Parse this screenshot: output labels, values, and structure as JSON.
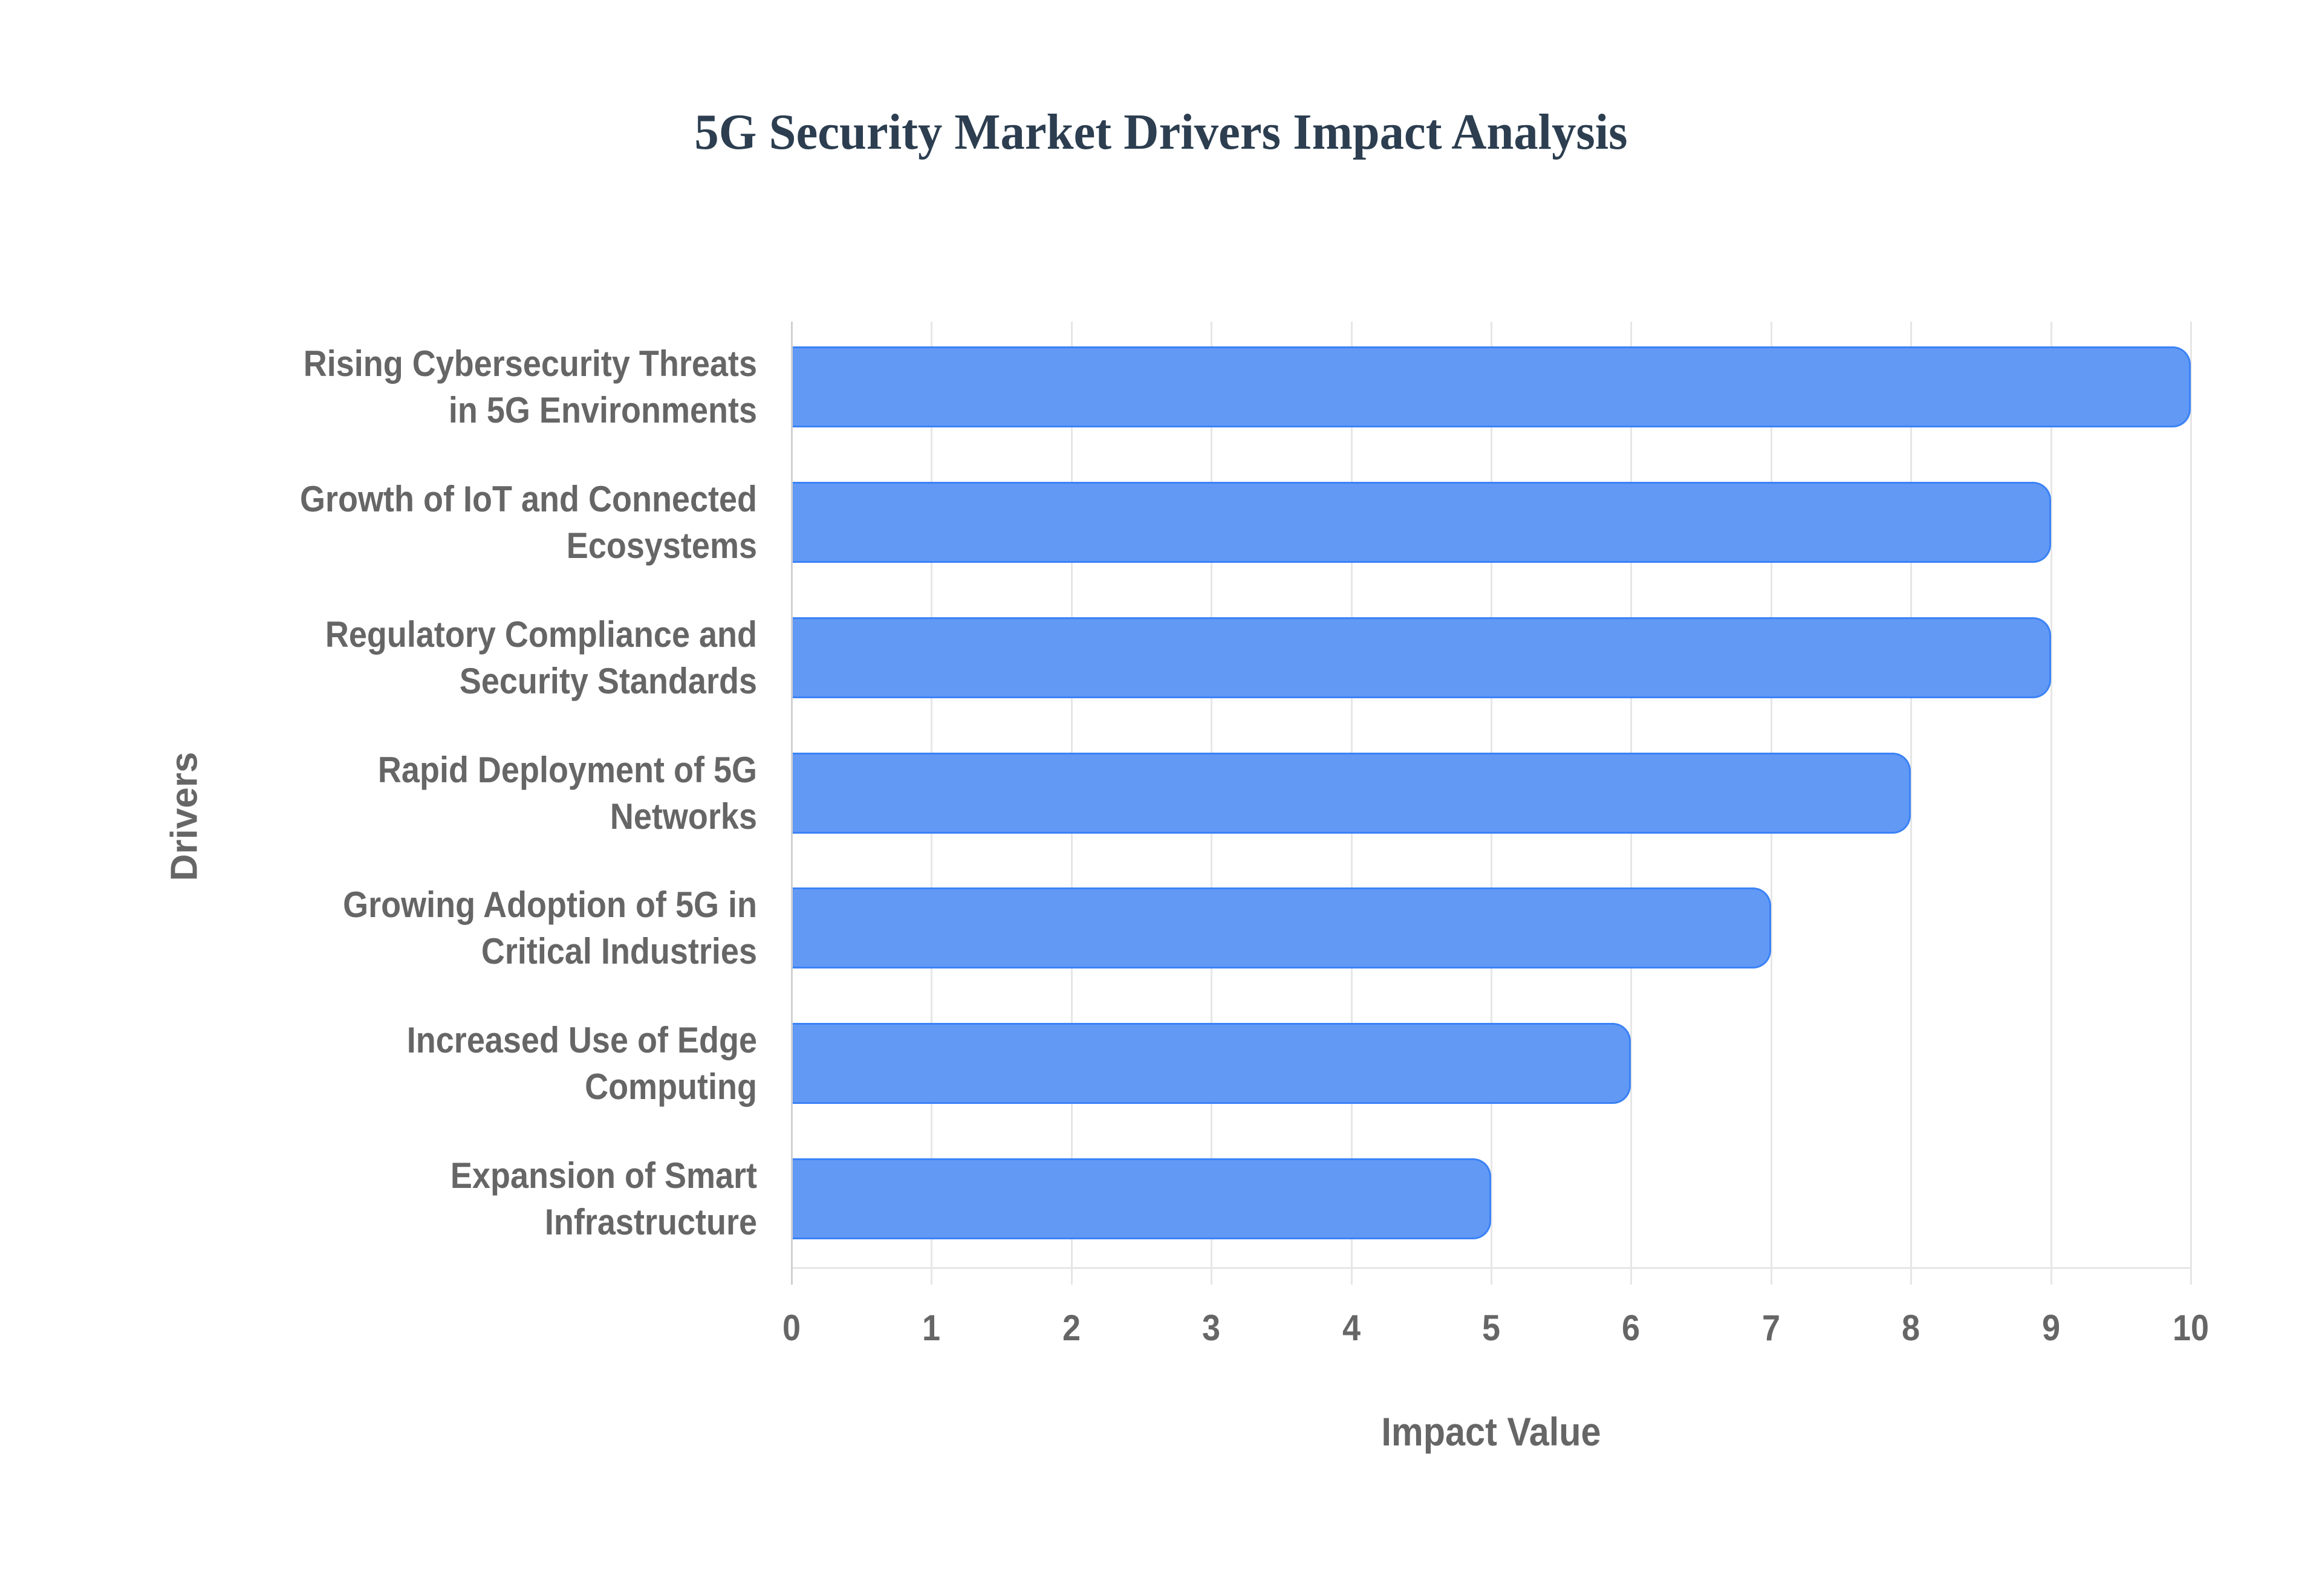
{
  "chart_data": {
    "type": "bar",
    "orientation": "horizontal",
    "title": "5G Security Market Drivers Impact Analysis",
    "xlabel": "Impact Value",
    "ylabel": "Drivers",
    "xlim": [
      0,
      10
    ],
    "x_ticks": [
      "0",
      "1",
      "2",
      "3",
      "4",
      "5",
      "6",
      "7",
      "8",
      "9",
      "10"
    ],
    "grid": true,
    "legend": null,
    "categories": [
      "Rising Cybersecurity Threats in 5G Environments",
      "Growth of IoT and Connected Ecosystems",
      "Regulatory Compliance and Security Standards",
      "Rapid Deployment of 5G Networks",
      "Growing Adoption of 5G in Critical Industries",
      "Increased Use of Edge Computing",
      "Expansion of Smart Infrastructure"
    ],
    "values": [
      10,
      9,
      9,
      8,
      7,
      6,
      5
    ],
    "bar_color": "#6199f5",
    "bar_border_color": "#3b82f6"
  },
  "labels": {
    "bars": [
      {
        "line1": "Rising Cybersecurity Threats",
        "line2": "in 5G Environments"
      },
      {
        "line1": "Growth of IoT and Connected",
        "line2": "Ecosystems"
      },
      {
        "line1": "Regulatory Compliance and",
        "line2": "Security Standards"
      },
      {
        "line1": "Rapid Deployment of 5G",
        "line2": "Networks"
      },
      {
        "line1": "Growing Adoption of 5G in",
        "line2": "Critical Industries"
      },
      {
        "line1": "Increased Use of Edge",
        "line2": "Computing"
      },
      {
        "line1": "Expansion of Smart",
        "line2": "Infrastructure"
      }
    ]
  }
}
